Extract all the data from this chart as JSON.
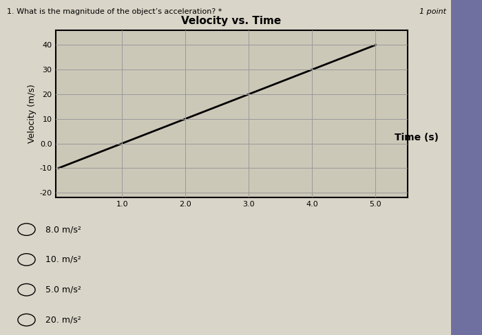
{
  "title": "Velocity vs. Time",
  "xlabel": "Time (s)",
  "ylabel": "Velocity (m/s)",
  "question": "1. What is the magnitude of the object’s acceleration? *",
  "points_label": "1 point",
  "line_x": [
    0,
    5.0
  ],
  "line_y": [
    -10,
    40
  ],
  "line_color": "#000000",
  "line_width": 2.0,
  "xlim": [
    -0.05,
    5.5
  ],
  "ylim": [
    -22,
    46
  ],
  "xticks": [
    1.0,
    2.0,
    3.0,
    4.0,
    5.0
  ],
  "yticks": [
    -20,
    -10,
    0,
    10,
    20,
    30,
    40
  ],
  "ytick_labels": [
    "-20",
    "-10",
    "0.0",
    "10",
    "20",
    "30",
    "40"
  ],
  "grid_color": "#999999",
  "bg_color": "#d9d5c8",
  "plot_bg_color": "#ccc8b8",
  "right_strip_color": "#7070a0",
  "title_fontsize": 11,
  "axis_label_fontsize": 9,
  "tick_fontsize": 8,
  "question_fontsize": 8,
  "choice_fontsize": 9,
  "choices": [
    "8.0 m/s^2",
    "10. m/s^2",
    "5.0 m/s^2",
    "20. m/s^2"
  ]
}
